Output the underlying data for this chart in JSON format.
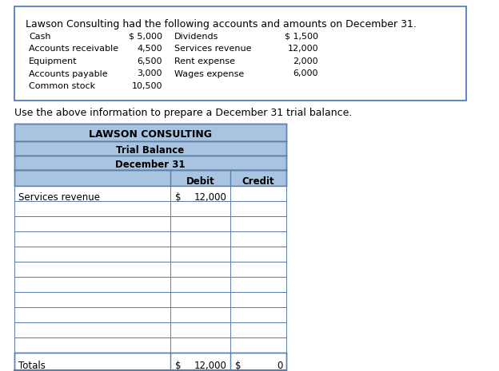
{
  "title_text": "Lawson Consulting had the following accounts and amounts on December 31.",
  "accounts_left": [
    "Cash",
    "Accounts receivable",
    "Equipment",
    "Accounts payable",
    "Common stock"
  ],
  "amounts_left": [
    "$ 5,000",
    "4,500",
    "6,500",
    "3,000",
    "10,500"
  ],
  "accounts_right": [
    "Dividends",
    "Services revenue",
    "Rent expense",
    "Wages expense"
  ],
  "amounts_right": [
    "$ 1,500",
    "12,000",
    "2,000",
    "6,000"
  ],
  "instruction": "Use the above information to prepare a December 31 trial balance.",
  "table_title1": "LAWSON CONSULTING",
  "table_title2": "Trial Balance",
  "table_title3": "December 31",
  "table_rows": [
    [
      "Services revenue",
      "$",
      "12,000",
      "",
      ""
    ],
    [
      "",
      "",
      "",
      "",
      ""
    ],
    [
      "",
      "",
      "",
      "",
      ""
    ],
    [
      "",
      "",
      "",
      "",
      ""
    ],
    [
      "",
      "",
      "",
      "",
      ""
    ],
    [
      "",
      "",
      "",
      "",
      ""
    ],
    [
      "",
      "",
      "",
      "",
      ""
    ],
    [
      "",
      "",
      "",
      "",
      ""
    ],
    [
      "",
      "",
      "",
      "",
      ""
    ],
    [
      "",
      "",
      "",
      "",
      ""
    ],
    [
      "",
      "",
      "",
      "",
      ""
    ]
  ],
  "header_bg_color": "#a8c4e0",
  "row_bg_color": "#ffffff",
  "border_color": "#5b7faa",
  "text_color": "#000000",
  "box_outline_color": "#4472c4"
}
